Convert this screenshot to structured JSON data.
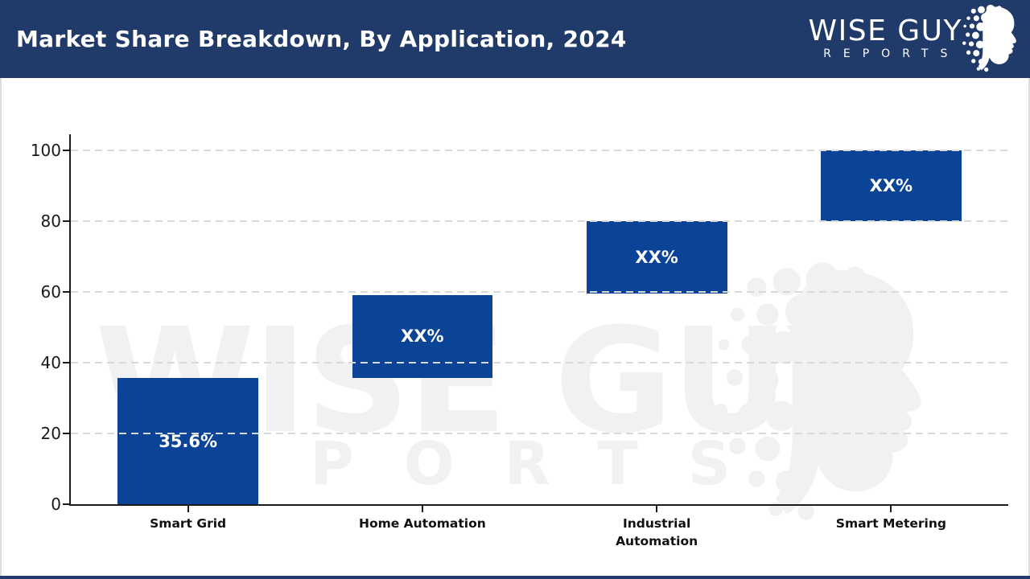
{
  "header": {
    "title": "Market Share Breakdown, By Application, 2024",
    "logo": {
      "line1": "WISE GUY",
      "line2": "REPORTS"
    }
  },
  "watermark": {
    "line1": "WISE GUY",
    "line2": "REPORTS"
  },
  "chart_data": {
    "type": "bar",
    "subtype": "waterfall-segments",
    "title": "Market Share Breakdown, By Application, 2024",
    "categories": [
      "Smart Grid",
      "Home Automation",
      "Industrial Automation",
      "Smart Metering"
    ],
    "segments": [
      {
        "category": "Smart Grid",
        "base": 0,
        "top": 35.6,
        "label": "35.6%"
      },
      {
        "category": "Home Automation",
        "base": 35.6,
        "top": 59.2,
        "label": "XX%"
      },
      {
        "category": "Industrial Automation",
        "base": 59.6,
        "top": 80,
        "label": "XX%"
      },
      {
        "category": "Smart Metering",
        "base": 80,
        "top": 100,
        "label": "XX%"
      }
    ],
    "xlabel": "",
    "ylabel": "",
    "ylim": [
      0,
      100
    ],
    "yticks": [
      0,
      20,
      40,
      60,
      80,
      100
    ],
    "grid": {
      "axis": "y",
      "style": "dashed",
      "on_top": true
    },
    "colors": {
      "bar": "#0b4397",
      "bar_label": "#ffffff",
      "axis": "#1a1a1a",
      "gridline": "#d9d9d9",
      "header_bg": "#203a69",
      "watermark": "#f0f1f3"
    }
  }
}
